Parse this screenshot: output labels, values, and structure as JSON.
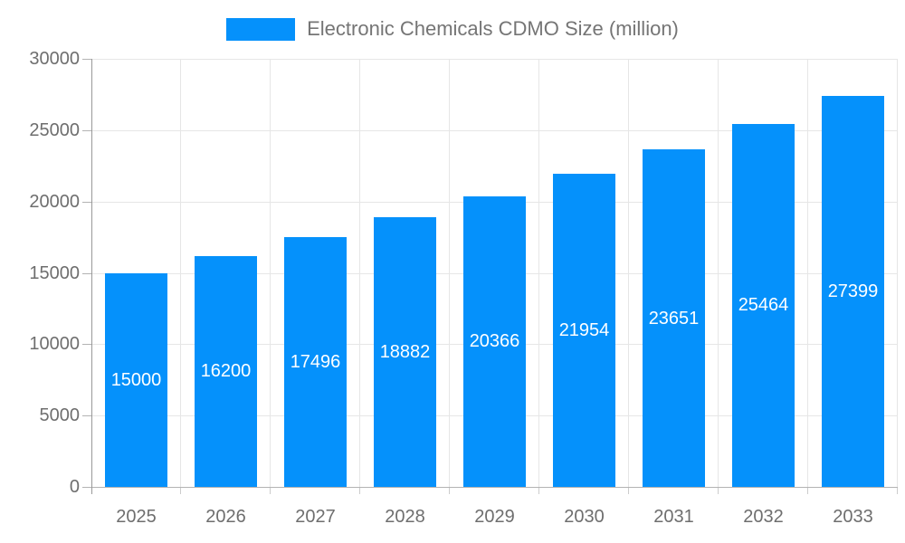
{
  "chart_data": {
    "type": "bar",
    "title": "Electronic Chemicals CDMO Size (million)",
    "categories": [
      "2025",
      "2026",
      "2027",
      "2028",
      "2029",
      "2030",
      "2031",
      "2032",
      "2033"
    ],
    "series": [
      {
        "name": "Electronic Chemicals CDMO Size (million)",
        "values": [
          15000,
          16200,
          17496,
          18882,
          20366,
          21954,
          23651,
          25464,
          27399
        ]
      }
    ],
    "ylim": [
      0,
      30000
    ],
    "yticks": [
      0,
      5000,
      10000,
      15000,
      20000,
      25000,
      30000
    ],
    "xlabel": "",
    "ylabel": "",
    "grid": true,
    "legend_position": "top",
    "value_label_position": "inside-center"
  },
  "colors": {
    "bar": "#0591fb",
    "bar_label": "#ffffff",
    "grid_line": "#e6e6e6",
    "axis_line": "#999999",
    "baseline": "#b3b3b3",
    "y_tick": "#b3b3b3",
    "x_tick": "#cccccc",
    "axis_text": "#6e6e6e",
    "legend_text": "#757575",
    "background": "#ffffff"
  }
}
